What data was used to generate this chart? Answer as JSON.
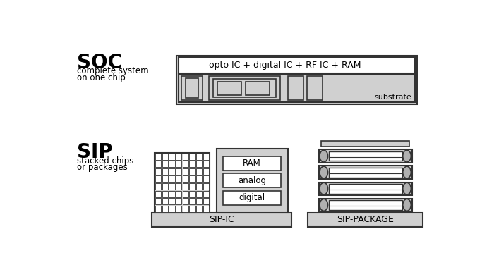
{
  "soc_label": "SOC",
  "soc_sublabel": "complete system\non one chip",
  "sip_label": "SIP",
  "sip_sublabel": "stacked chips\nor packages",
  "soc_top_text": "opto IC + digital IC + RF IC + RAM",
  "soc_substrate_text": "substrate",
  "ram_text": "RAM",
  "analog_text": "analog",
  "digital_text": "digital",
  "sip_ic_text": "SIP-IC",
  "sip_pkg_text": "SIP-PACKAGE",
  "outline_color": "#333333",
  "fill_light": "#d0d0d0",
  "fill_mid": "#b0b0b0",
  "fill_white": "#ffffff"
}
